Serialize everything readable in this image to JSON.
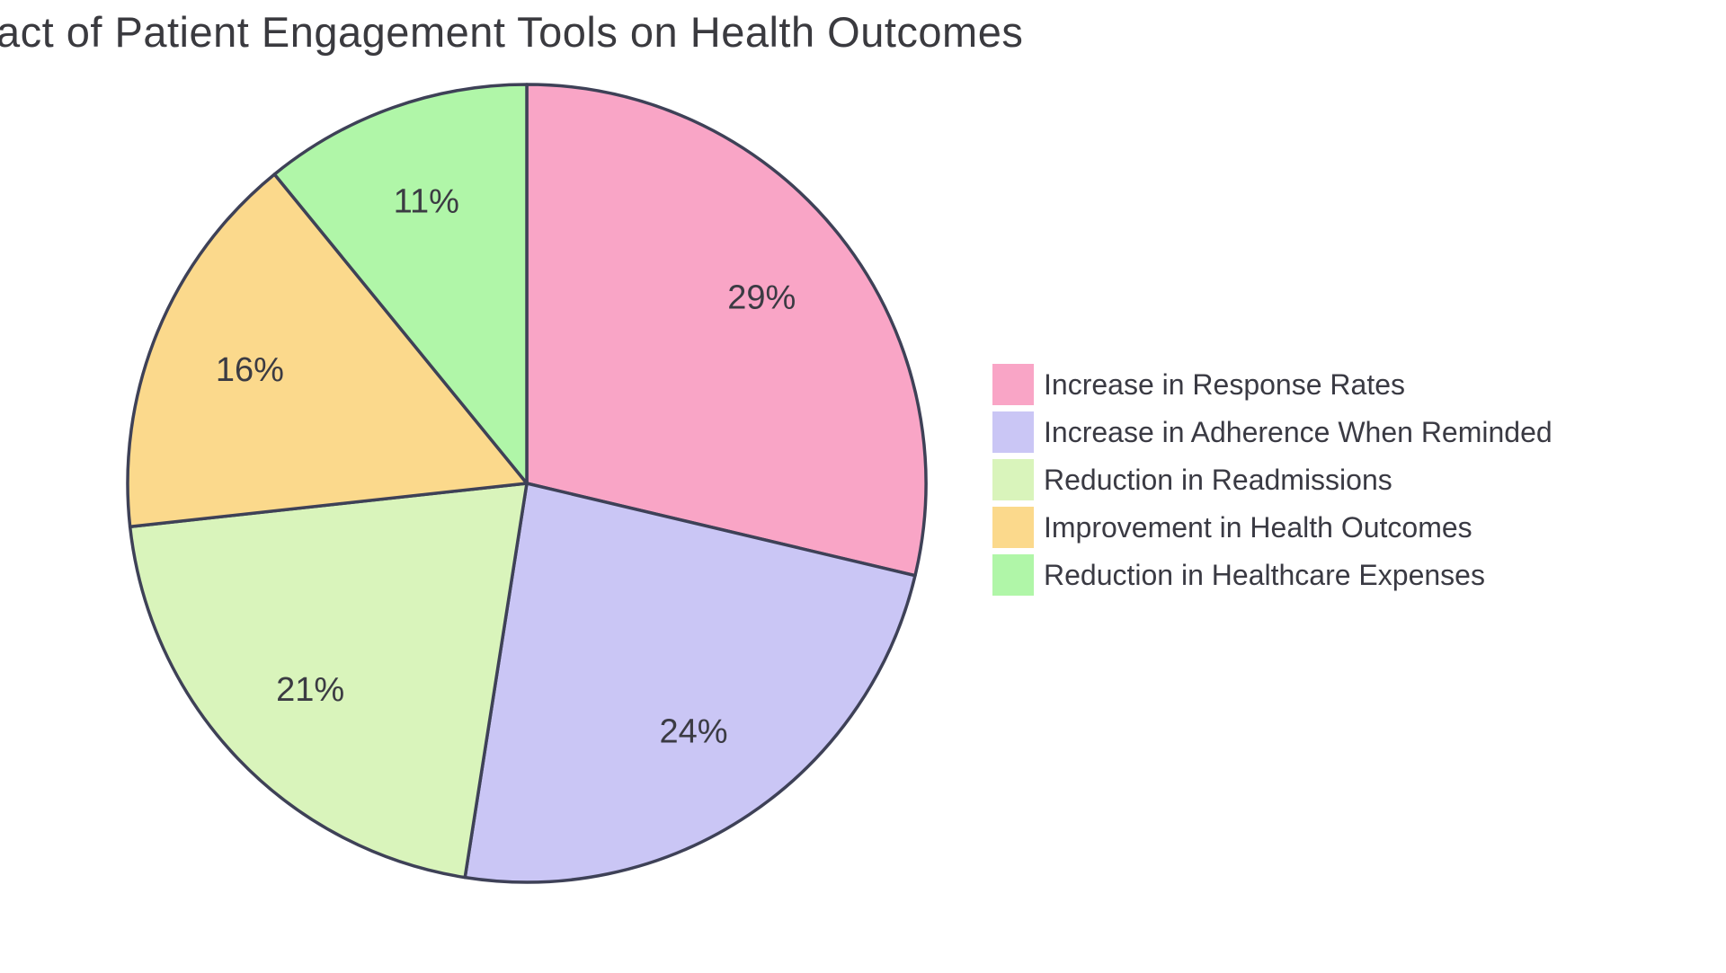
{
  "title": {
    "visible_text": "act of Patient Engagement Tools on Health Outcomes"
  },
  "chart_data": {
    "type": "pie",
    "title": "act of Patient Engagement Tools on Health Outcomes",
    "value_suffix": "%",
    "legend_position": "right",
    "start_angle": "top, clockwise",
    "stroke_color": "#3e4157",
    "label_color": "#3b3b43",
    "slices": [
      {
        "label": "Increase in Response Rates",
        "value": 29,
        "color": "#f9a5c6"
      },
      {
        "label": "Increase in Adherence When Reminded",
        "value": 24,
        "color": "#cac6f5"
      },
      {
        "label": "Reduction in Readmissions",
        "value": 21,
        "color": "#d9f4bb"
      },
      {
        "label": "Improvement in Health Outcomes",
        "value": 16,
        "color": "#fbd98c"
      },
      {
        "label": "Reduction in Healthcare Expenses",
        "value": 11,
        "color": "#b0f6a8"
      }
    ]
  }
}
